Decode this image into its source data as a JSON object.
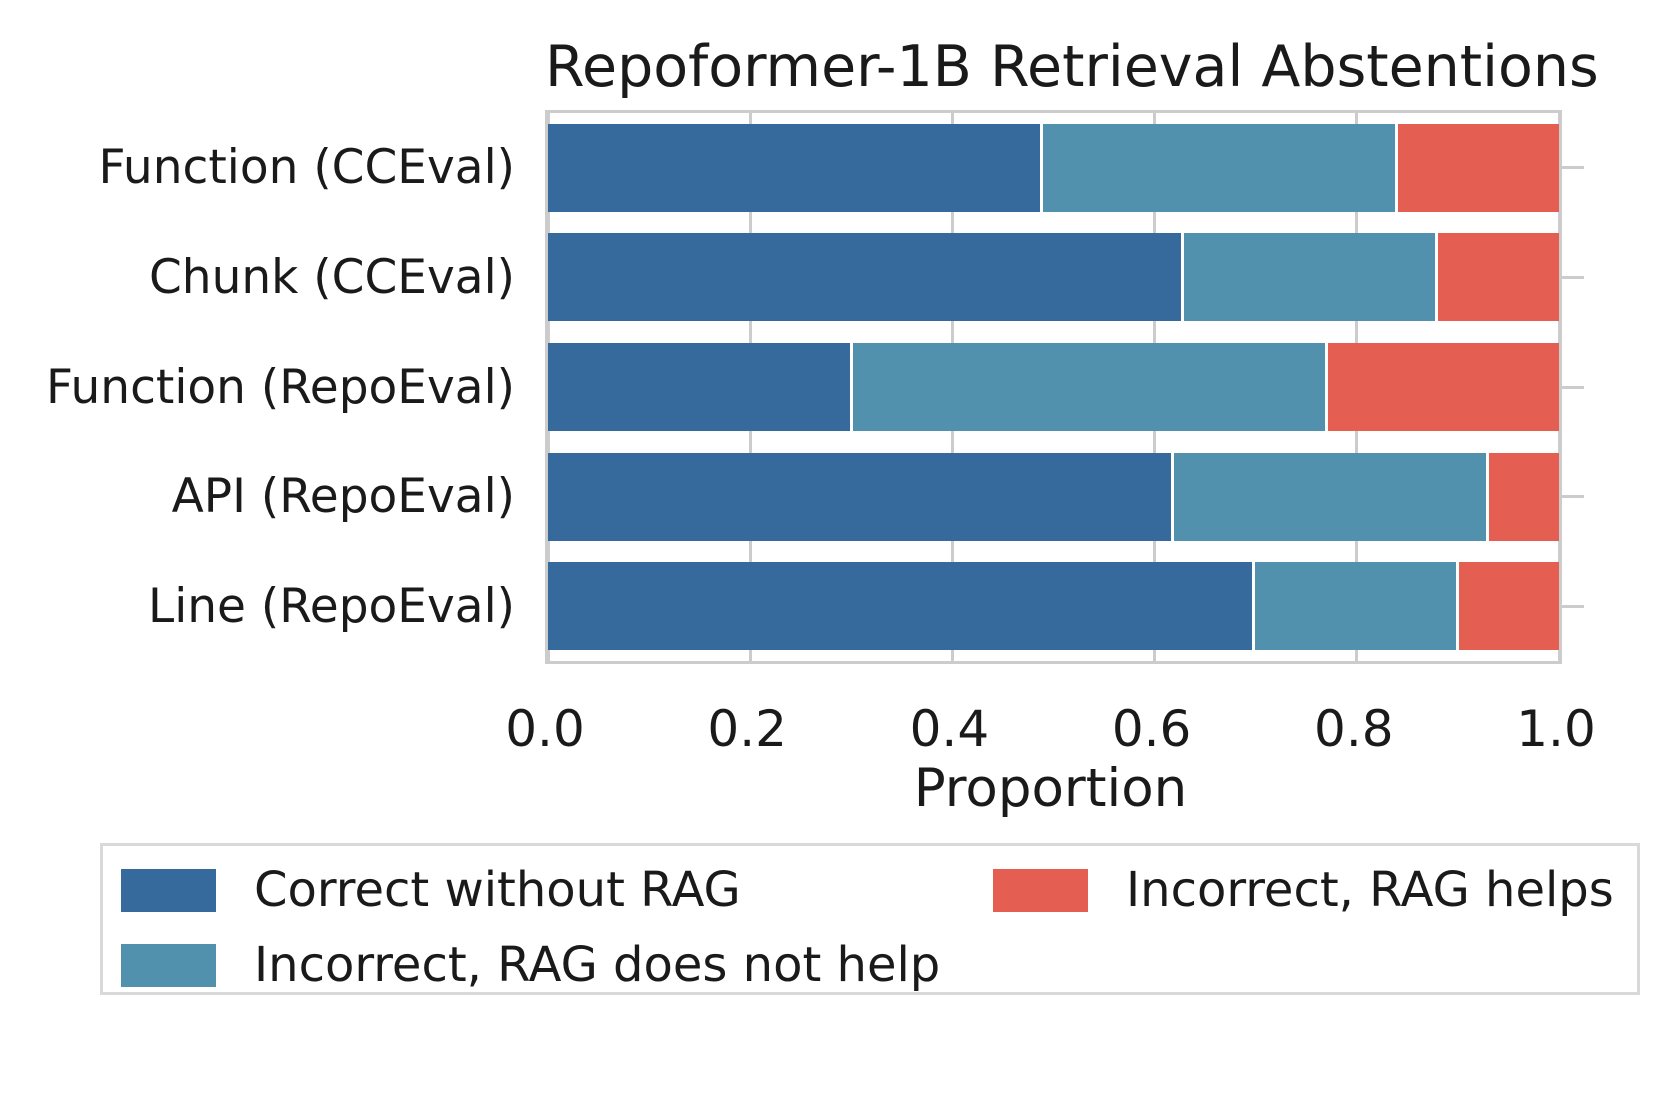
{
  "figure": {
    "background": "#ffffff",
    "text_color": "#1a1a1a",
    "grid_color": "#cccccc",
    "legend_border_color": "#d9d9d9"
  },
  "chart_data": {
    "type": "bar",
    "orientation": "horizontal",
    "stacked": true,
    "title": "Repoformer-1B Retrieval Abstentions",
    "xlabel": "Proportion",
    "ylabel": "",
    "xlim": [
      0.0,
      1.0
    ],
    "grid": true,
    "x_ticks": [
      {
        "value": 0.0,
        "label": "0.0"
      },
      {
        "value": 0.2,
        "label": "0.2"
      },
      {
        "value": 0.4,
        "label": "0.4"
      },
      {
        "value": 0.6,
        "label": "0.6"
      },
      {
        "value": 0.8,
        "label": "0.8"
      },
      {
        "value": 1.0,
        "label": "1.0"
      }
    ],
    "categories": [
      "Function (CCEval)",
      "Chunk (CCEval)",
      "Function (RepoEval)",
      "API (RepoEval)",
      "Line (RepoEval)"
    ],
    "series": [
      {
        "name": "Correct without RAG",
        "color": "#376A9C",
        "values": [
          0.49,
          0.63,
          0.3,
          0.62,
          0.7
        ]
      },
      {
        "name": "Incorrect, RAG does not help",
        "color": "#5291AE",
        "values": [
          0.35,
          0.25,
          0.47,
          0.31,
          0.2
        ]
      },
      {
        "name": "Incorrect, RAG helps",
        "color": "#E45F51",
        "values": [
          0.16,
          0.12,
          0.23,
          0.07,
          0.1
        ]
      }
    ],
    "legend_position": "below",
    "legend_columns": [
      {
        "entries": [
          0,
          1
        ]
      },
      {
        "entries": [
          2
        ]
      }
    ]
  }
}
